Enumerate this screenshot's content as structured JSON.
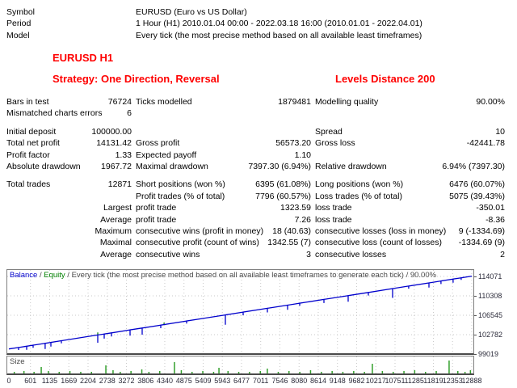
{
  "info": {
    "rows": [
      {
        "label": "Symbol",
        "value": "EURUSD (Euro vs US Dollar)"
      },
      {
        "label": "Period",
        "value": "1 Hour (H1) 2010.01.04 00:00 - 2022.03.18 16:00 (2010.01.01 - 2022.04.01)"
      },
      {
        "label": "Model",
        "value": "Every tick (the most precise method based on all available least timeframes)"
      }
    ]
  },
  "heading": {
    "title": "EURUSD H1",
    "strategy": "Strategy: One Direction, Reversal",
    "levels": "Levels Distance 200",
    "color": "#ff0000"
  },
  "stats": {
    "groups": [
      [
        [
          "Bars in test",
          "76724",
          "Ticks modelled",
          "1879481",
          "Modelling quality",
          "90.00%"
        ],
        [
          "Mismatched charts errors",
          "6",
          "",
          "",
          "",
          ""
        ]
      ],
      [
        [
          "Initial deposit",
          "100000.00",
          "",
          "",
          "Spread",
          "10"
        ],
        [
          "Total net profit",
          "14131.42",
          "Gross profit",
          "56573.20",
          "Gross loss",
          "-42441.78"
        ],
        [
          "Profit factor",
          "1.33",
          "Expected payoff",
          "1.10",
          "",
          ""
        ],
        [
          "Absolute drawdown",
          "1967.72",
          "Maximal drawdown",
          "7397.30 (6.94%)",
          "Relative drawdown",
          "6.94% (7397.30)"
        ]
      ],
      [
        [
          "Total trades",
          "12871",
          "Short positions (won %)",
          "6395 (61.08%)",
          "Long positions (won %)",
          "6476 (60.07%)"
        ],
        [
          "",
          "",
          "Profit trades (% of total)",
          "7796 (60.57%)",
          "Loss trades (% of total)",
          "5075 (39.43%)"
        ],
        [
          "",
          "Largest",
          "profit trade",
          "1323.59",
          "loss trade",
          "-350.01"
        ],
        [
          "",
          "Average",
          "profit trade",
          "7.26",
          "loss trade",
          "-8.36"
        ],
        [
          "",
          "Maximum",
          "consecutive wins (profit in money)",
          "18 (40.63)",
          "consecutive losses (loss in money)",
          "9 (-1334.69)"
        ],
        [
          "",
          "Maximal",
          "consecutive profit (count of wins)",
          "1342.55 (7)",
          "consecutive loss (count of losses)",
          "-1334.69 (9)"
        ],
        [
          "",
          "Average",
          "consecutive wins",
          "3",
          "consecutive losses",
          "2"
        ]
      ]
    ]
  },
  "chart_data": {
    "type": "line",
    "title": "Balance / Equity / Every tick (the most precise method based on all available least timeframes to generate each tick) / 90.00%",
    "header": {
      "balance_label": "Balance",
      "sep": " / ",
      "equity_label": "Equity",
      "rest": " / Every tick (the most precise method based on all available least timeframes to generate each tick) / 90.00%"
    },
    "xlim": [
      0,
      12888
    ],
    "x_ticks": [
      0,
      601,
      1135,
      1669,
      2204,
      2738,
      3272,
      3806,
      4340,
      4875,
      5409,
      5943,
      6477,
      7011,
      7546,
      8080,
      8614,
      9148,
      9682,
      10217,
      10751,
      11285,
      11819,
      12353,
      12888
    ],
    "y_ticks": [
      114071,
      110308,
      106545,
      102782,
      99019
    ],
    "grid": true,
    "legend_position": "top-left",
    "colors": {
      "balance": "#0000cc",
      "equity": "#008000",
      "grid": "#c9c9c9",
      "size_bars": "#33a02c"
    },
    "series": [
      {
        "name": "Balance",
        "points": [
          [
            0,
            100000
          ],
          [
            270,
            100296
          ],
          [
            270,
            99796
          ],
          [
            270,
            100296
          ],
          [
            495,
            100543
          ],
          [
            495,
            99843
          ],
          [
            495,
            100543
          ],
          [
            675,
            100740
          ],
          [
            675,
            100240
          ],
          [
            675,
            100740
          ],
          [
            1010,
            101107
          ],
          [
            1010,
            100007
          ],
          [
            1010,
            101107
          ],
          [
            1170,
            101283
          ],
          [
            1170,
            100483
          ],
          [
            1170,
            101283
          ],
          [
            1462,
            101603
          ],
          [
            1462,
            101103
          ],
          [
            1462,
            101603
          ],
          [
            2474,
            102713
          ],
          [
            2474,
            101213
          ],
          [
            2474,
            102713
          ],
          [
            2654,
            102910
          ],
          [
            2654,
            102010
          ],
          [
            2654,
            102910
          ],
          [
            2857,
            103133
          ],
          [
            2857,
            102433
          ],
          [
            2857,
            103133
          ],
          [
            3374,
            103700
          ],
          [
            3374,
            102600
          ],
          [
            3374,
            103700
          ],
          [
            3711,
            104069
          ],
          [
            3711,
            102769
          ],
          [
            3711,
            104069
          ],
          [
            4228,
            104636
          ],
          [
            4228,
            104036
          ],
          [
            4228,
            104636
          ],
          [
            4948,
            105426
          ],
          [
            4948,
            104926
          ],
          [
            4948,
            105426
          ],
          [
            6028,
            106610
          ],
          [
            6028,
            104710
          ],
          [
            6028,
            106610
          ],
          [
            6523,
            107152
          ],
          [
            6523,
            106552
          ],
          [
            6523,
            107152
          ],
          [
            7197,
            107892
          ],
          [
            7197,
            107092
          ],
          [
            7197,
            107892
          ],
          [
            7760,
            108509
          ],
          [
            7760,
            107609
          ],
          [
            7760,
            108509
          ],
          [
            8097,
            108878
          ],
          [
            8097,
            108378
          ],
          [
            8097,
            108878
          ],
          [
            8771,
            109617
          ],
          [
            8771,
            108917
          ],
          [
            8771,
            109617
          ],
          [
            9446,
            110358
          ],
          [
            9446,
            109158
          ],
          [
            9446,
            110358
          ],
          [
            10008,
            110974
          ],
          [
            10008,
            110374
          ],
          [
            10008,
            110974
          ],
          [
            10683,
            111714
          ],
          [
            10683,
            109914
          ],
          [
            10683,
            111714
          ],
          [
            11132,
            112206
          ],
          [
            11132,
            111706
          ],
          [
            11132,
            112206
          ],
          [
            11695,
            112824
          ],
          [
            11695,
            111924
          ],
          [
            11695,
            112824
          ],
          [
            12032,
            113193
          ],
          [
            12032,
            112593
          ],
          [
            12032,
            113193
          ],
          [
            12369,
            113563
          ],
          [
            12369,
            112863
          ],
          [
            12369,
            113563
          ],
          [
            12594,
            113810
          ],
          [
            12594,
            113410
          ],
          [
            12594,
            113810
          ],
          [
            12888,
            114131
          ]
        ]
      },
      {
        "name": "Equity",
        "spikes": [
          [
            2474,
            102713,
            103213
          ],
          [
            4320,
            104737,
            105137
          ]
        ]
      }
    ],
    "size_panel": {
      "label": "Size",
      "bars": [
        [
          150,
          2
        ],
        [
          420,
          3
        ],
        [
          700,
          2
        ],
        [
          900,
          8
        ],
        [
          1100,
          3
        ],
        [
          1400,
          2
        ],
        [
          1700,
          3
        ],
        [
          2000,
          2
        ],
        [
          2300,
          2
        ],
        [
          2700,
          10
        ],
        [
          2900,
          4
        ],
        [
          3100,
          2
        ],
        [
          3400,
          3
        ],
        [
          3700,
          5
        ],
        [
          3900,
          2
        ],
        [
          4200,
          3
        ],
        [
          4610,
          14
        ],
        [
          4800,
          4
        ],
        [
          5100,
          2
        ],
        [
          5400,
          3
        ],
        [
          5700,
          2
        ],
        [
          5850,
          7
        ],
        [
          6100,
          3
        ],
        [
          6400,
          2
        ],
        [
          6700,
          2
        ],
        [
          7000,
          3
        ],
        [
          7197,
          6
        ],
        [
          7500,
          2
        ],
        [
          7800,
          3
        ],
        [
          8100,
          2
        ],
        [
          8400,
          4
        ],
        [
          8700,
          2
        ],
        [
          9000,
          3
        ],
        [
          9300,
          2
        ],
        [
          9600,
          3
        ],
        [
          9900,
          2
        ],
        [
          10120,
          12
        ],
        [
          10400,
          3
        ],
        [
          10700,
          2
        ],
        [
          11000,
          3
        ],
        [
          11300,
          4
        ],
        [
          11600,
          2
        ],
        [
          11900,
          3
        ],
        [
          12257,
          16
        ],
        [
          12500,
          3
        ],
        [
          12700,
          2
        ],
        [
          12850,
          4
        ]
      ]
    }
  }
}
